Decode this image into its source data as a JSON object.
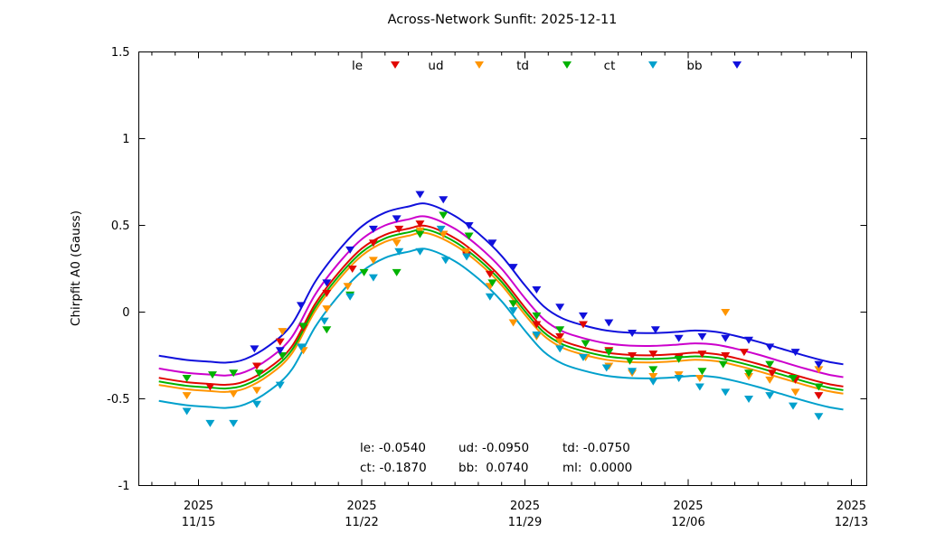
{
  "chart_data": {
    "type": "scatter+line",
    "title": "Across-Network Sunfit: 2025-12-11",
    "ylabel": "Chirpfit A0 (Gauss)",
    "xlabel": "",
    "ylim": [
      -1,
      1.5
    ],
    "y_tick_labels": [
      "1.5",
      "1",
      "0.5",
      "0",
      "-0.5",
      "-1"
    ],
    "y_tick_values": [
      1.5,
      1,
      0.5,
      0,
      -0.5,
      -1
    ],
    "x_unit": "days since 2025-11-15",
    "x_range_days": [
      -2.56,
      28.66
    ],
    "x_tick_days": [
      0,
      7,
      14,
      21,
      28
    ],
    "x_tick_labels": [
      {
        "year": "2025",
        "date": "11/15"
      },
      {
        "year": "2025",
        "date": "11/22"
      },
      {
        "year": "2025",
        "date": "11/29"
      },
      {
        "year": "2025",
        "date": "12/06"
      },
      {
        "year": "2025",
        "date": "12/13"
      }
    ],
    "x_minor_tick_interval_days": 1,
    "grid": false,
    "legend_position": "top-inside",
    "legend_entries": [
      {
        "label": "le",
        "color": "#e10600"
      },
      {
        "label": "ud",
        "color": "#ff9500"
      },
      {
        "label": "td",
        "color": "#00b200"
      },
      {
        "label": "ct",
        "color": "#00a0cc"
      },
      {
        "label": "bb",
        "color": "#1010dc"
      }
    ],
    "fit_results_lines": [
      [
        "le: -0.0540",
        "ud: -0.0950",
        "td: -0.0750"
      ],
      [
        "ct: -0.1870",
        "bb:  0.0740",
        "ml:  0.0000"
      ]
    ],
    "ml_curve": {
      "name": "ml",
      "color": "#cc00cc",
      "fit_offset": 0.0,
      "points": [
        [
          -1.7,
          -0.325
        ],
        [
          -0.5,
          -0.35
        ],
        [
          0.5,
          -0.36
        ],
        [
          1.2,
          -0.365
        ],
        [
          2,
          -0.345
        ],
        [
          3,
          -0.27
        ],
        [
          4,
          -0.145
        ],
        [
          5,
          0.1
        ],
        [
          6,
          0.28
        ],
        [
          7,
          0.42
        ],
        [
          8,
          0.5
        ],
        [
          9,
          0.535
        ],
        [
          9.8,
          0.55
        ],
        [
          11,
          0.48
        ],
        [
          12,
          0.38
        ],
        [
          13,
          0.25
        ],
        [
          14,
          0.08
        ],
        [
          14.8,
          -0.04
        ],
        [
          15.6,
          -0.11
        ],
        [
          16.5,
          -0.15
        ],
        [
          17.5,
          -0.18
        ],
        [
          18.5,
          -0.193
        ],
        [
          19.5,
          -0.195
        ],
        [
          20.5,
          -0.188
        ],
        [
          21.3,
          -0.18
        ],
        [
          22.2,
          -0.188
        ],
        [
          23,
          -0.21
        ],
        [
          24,
          -0.245
        ],
        [
          25,
          -0.285
        ],
        [
          26,
          -0.325
        ],
        [
          27,
          -0.36
        ],
        [
          27.65,
          -0.375
        ]
      ]
    },
    "series": [
      {
        "name": "le",
        "color": "#e10600",
        "fit_offset": -0.054,
        "scatter": [
          [
            0.5,
            -0.43
          ],
          [
            2.5,
            -0.31
          ],
          [
            3.5,
            -0.17
          ],
          [
            4.5,
            -0.09
          ],
          [
            5.5,
            0.11
          ],
          [
            6.6,
            0.25
          ],
          [
            7.5,
            0.4
          ],
          [
            8.6,
            0.48
          ],
          [
            9.5,
            0.51
          ],
          [
            10.5,
            0.45
          ],
          [
            11.5,
            0.33
          ],
          [
            12.5,
            0.22
          ],
          [
            13.5,
            0.05
          ],
          [
            14.5,
            -0.07
          ],
          [
            15.5,
            -0.14
          ],
          [
            16.5,
            -0.07
          ],
          [
            17.6,
            -0.22
          ],
          [
            18.6,
            -0.25
          ],
          [
            19.5,
            -0.24
          ],
          [
            20.6,
            -0.26
          ],
          [
            21.6,
            -0.24
          ],
          [
            22.6,
            -0.25
          ],
          [
            23.4,
            -0.23
          ],
          [
            24.6,
            -0.35
          ],
          [
            25.6,
            -0.39
          ],
          [
            26.6,
            -0.48
          ]
        ]
      },
      {
        "name": "ud",
        "color": "#ff9500",
        "fit_offset": -0.095,
        "scatter": [
          [
            -0.5,
            -0.48
          ],
          [
            1.5,
            -0.47
          ],
          [
            2.5,
            -0.45
          ],
          [
            3.6,
            -0.11
          ],
          [
            4.5,
            -0.22
          ],
          [
            5.5,
            0.02
          ],
          [
            6.4,
            0.15
          ],
          [
            7.5,
            0.3
          ],
          [
            8.5,
            0.4
          ],
          [
            9.5,
            0.47
          ],
          [
            10.5,
            0.45
          ],
          [
            11.5,
            0.35
          ],
          [
            12.5,
            0.15
          ],
          [
            13.5,
            -0.06
          ],
          [
            14.5,
            -0.14
          ],
          [
            15.5,
            -0.17
          ],
          [
            16.6,
            -0.26
          ],
          [
            17.6,
            -0.31
          ],
          [
            18.6,
            -0.35
          ],
          [
            19.5,
            -0.37
          ],
          [
            20.6,
            -0.36
          ],
          [
            21.5,
            -0.38
          ],
          [
            22.6,
            0.0
          ],
          [
            23.6,
            -0.37
          ],
          [
            24.5,
            -0.39
          ],
          [
            25.6,
            -0.46
          ],
          [
            26.6,
            -0.33
          ]
        ]
      },
      {
        "name": "td",
        "color": "#00b200",
        "fit_offset": -0.075,
        "scatter": [
          [
            -0.5,
            -0.38
          ],
          [
            0.6,
            -0.36
          ],
          [
            1.5,
            -0.35
          ],
          [
            2.6,
            -0.35
          ],
          [
            3.6,
            -0.25
          ],
          [
            4.5,
            -0.08
          ],
          [
            5.5,
            -0.1
          ],
          [
            6.5,
            0.1
          ],
          [
            7.1,
            0.23
          ],
          [
            8.5,
            0.23
          ],
          [
            9.5,
            0.45
          ],
          [
            10.5,
            0.56
          ],
          [
            11.6,
            0.44
          ],
          [
            12.6,
            0.17
          ],
          [
            13.5,
            0.05
          ],
          [
            14.5,
            -0.02
          ],
          [
            15.5,
            -0.1
          ],
          [
            16.6,
            -0.18
          ],
          [
            17.6,
            -0.23
          ],
          [
            18.5,
            -0.28
          ],
          [
            19.5,
            -0.33
          ],
          [
            20.6,
            -0.27
          ],
          [
            21.6,
            -0.34
          ],
          [
            22.5,
            -0.3
          ],
          [
            23.6,
            -0.35
          ],
          [
            24.5,
            -0.3
          ],
          [
            25.5,
            -0.38
          ],
          [
            26.6,
            -0.43
          ]
        ]
      },
      {
        "name": "ct",
        "color": "#00a0cc",
        "fit_offset": -0.187,
        "scatter": [
          [
            -0.5,
            -0.57
          ],
          [
            0.5,
            -0.64
          ],
          [
            1.5,
            -0.64
          ],
          [
            2.5,
            -0.53
          ],
          [
            3.5,
            -0.42
          ],
          [
            4.4,
            -0.2
          ],
          [
            5.4,
            -0.05
          ],
          [
            6.5,
            0.09
          ],
          [
            7.5,
            0.2
          ],
          [
            8.6,
            0.35
          ],
          [
            9.5,
            0.35
          ],
          [
            10.4,
            0.48
          ],
          [
            10.6,
            0.3
          ],
          [
            11.5,
            0.32
          ],
          [
            12.5,
            0.09
          ],
          [
            13.5,
            0.01
          ],
          [
            14.5,
            -0.13
          ],
          [
            15.5,
            -0.21
          ],
          [
            16.5,
            -0.26
          ],
          [
            17.5,
            -0.32
          ],
          [
            18.6,
            -0.34
          ],
          [
            19.5,
            -0.4
          ],
          [
            20.6,
            -0.38
          ],
          [
            21.5,
            -0.43
          ],
          [
            22.6,
            -0.46
          ],
          [
            23.6,
            -0.5
          ],
          [
            24.5,
            -0.48
          ],
          [
            25.5,
            -0.54
          ],
          [
            26.6,
            -0.6
          ]
        ]
      },
      {
        "name": "bb",
        "color": "#1010dc",
        "fit_offset": 0.074,
        "scatter": [
          [
            2.4,
            -0.21
          ],
          [
            3.5,
            -0.22
          ],
          [
            4.4,
            0.04
          ],
          [
            5.5,
            0.17
          ],
          [
            6.5,
            0.36
          ],
          [
            7.5,
            0.48
          ],
          [
            8.5,
            0.54
          ],
          [
            9.5,
            0.68
          ],
          [
            10.5,
            0.65
          ],
          [
            11.6,
            0.5
          ],
          [
            12.6,
            0.4
          ],
          [
            13.5,
            0.26
          ],
          [
            14.5,
            0.13
          ],
          [
            15.5,
            0.03
          ],
          [
            16.5,
            -0.02
          ],
          [
            17.6,
            -0.06
          ],
          [
            18.6,
            -0.12
          ],
          [
            19.6,
            -0.1
          ],
          [
            20.6,
            -0.15
          ],
          [
            21.6,
            -0.14
          ],
          [
            22.6,
            -0.15
          ],
          [
            23.6,
            -0.16
          ],
          [
            24.5,
            -0.2
          ],
          [
            25.6,
            -0.23
          ],
          [
            26.6,
            -0.3
          ]
        ]
      }
    ]
  }
}
